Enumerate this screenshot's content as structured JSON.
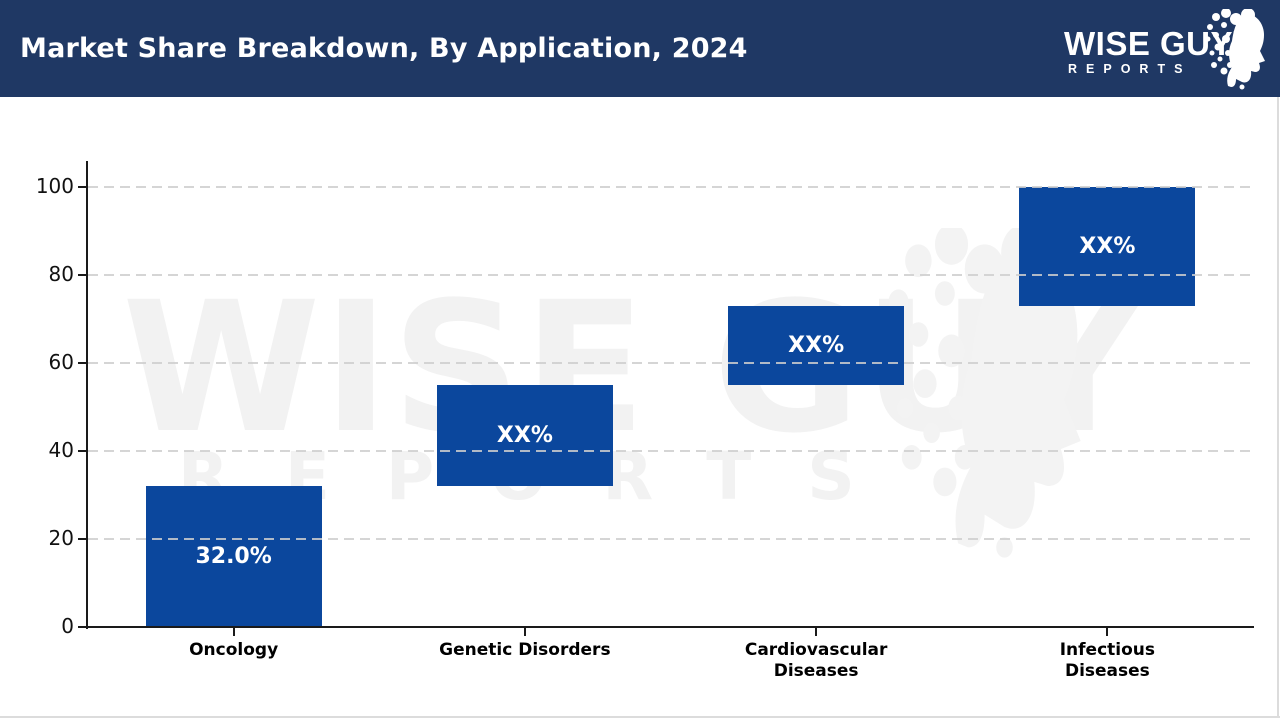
{
  "header": {
    "title": "Market Share Breakdown, By Application, 2024",
    "background": "#1F3864",
    "logo": {
      "line1": "WISE GUY",
      "line2": "REPORTS"
    }
  },
  "watermark": {
    "line1": "WISE GUY",
    "line2": "REPORTS"
  },
  "chart_data": {
    "type": "bar",
    "subtype": "waterfall-floating-bars",
    "title": "Market Share Breakdown, By Application, 2024",
    "categories": [
      "Oncology",
      "Genetic Disorders",
      "Cardiovascular\nDiseases",
      "Infectious\nDiseases"
    ],
    "segments": [
      {
        "category": "Oncology",
        "start": 0,
        "end": 32,
        "value": 32,
        "label": "32.0%"
      },
      {
        "category": "Genetic Disorders",
        "start": 32,
        "end": 55,
        "value": 23,
        "label": "XX%"
      },
      {
        "category": "Cardiovascular Diseases",
        "start": 55,
        "end": 73,
        "value": 18,
        "label": "XX%"
      },
      {
        "category": "Infectious Diseases",
        "start": 73,
        "end": 100,
        "value": 27,
        "label": "XX%"
      }
    ],
    "xlabel": "",
    "ylabel": "",
    "yticks": [
      0,
      20,
      40,
      60,
      80,
      100
    ],
    "ylim": [
      0,
      106
    ],
    "grid": "horizontal-dashed-over-bars",
    "bar_color": "#0B479D",
    "grid_color": "#D4D4D4",
    "axis_color": "#1A1A1A",
    "label_color": "#FFFFFF"
  }
}
